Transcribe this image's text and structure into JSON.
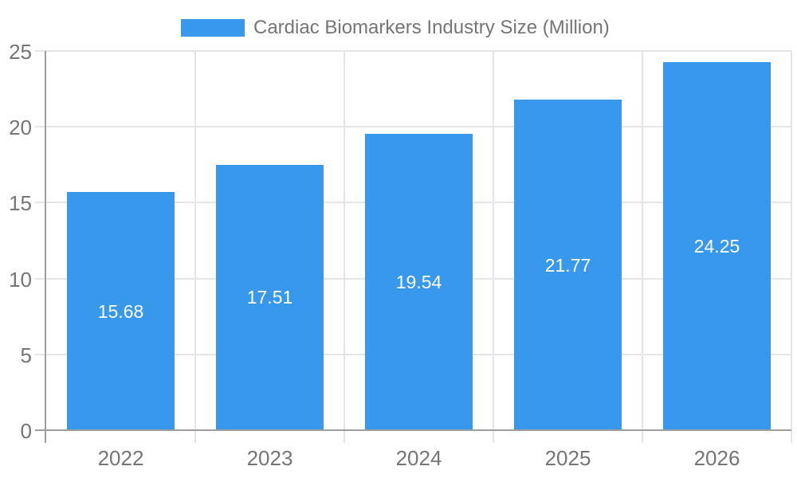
{
  "legend": {
    "label": "Cardiac Biomarkers Industry Size (Million)",
    "swatch_color": "#3899ec"
  },
  "chart_data": {
    "type": "bar",
    "title": "Cardiac Biomarkers Industry Size (Million)",
    "series_name": "Cardiac Biomarkers Industry Size (Million)",
    "categories": [
      "2022",
      "2023",
      "2024",
      "2025",
      "2026"
    ],
    "values": [
      15.68,
      17.51,
      19.54,
      21.77,
      24.25
    ],
    "value_labels": [
      "15.68",
      "17.51",
      "19.54",
      "21.77",
      "24.25"
    ],
    "xlabel": "",
    "ylabel": "",
    "ylim": [
      0,
      25
    ],
    "yticks": [
      0,
      5,
      10,
      15,
      20,
      25
    ],
    "ytick_labels": [
      "0",
      "5",
      "10",
      "15",
      "20",
      "25"
    ],
    "grid": true,
    "legend_position": "top",
    "colors": {
      "bar": "#3899ec",
      "bar_label_text": "#ffffff",
      "axis_line": "#9e9e9e",
      "gridline": "#e5e5e5",
      "tick_label_text": "#757575",
      "background": "#ffffff"
    }
  }
}
